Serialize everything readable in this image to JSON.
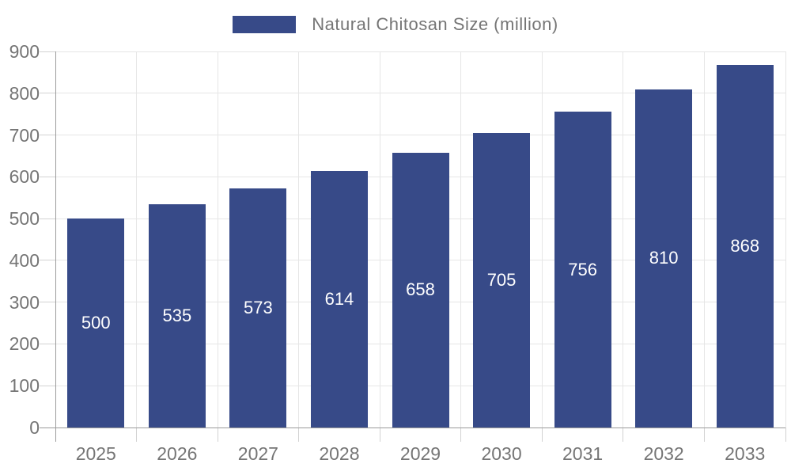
{
  "chart_data": {
    "type": "bar",
    "title": "",
    "series_name": "Natural Chitosan Size (million)",
    "categories": [
      "2025",
      "2026",
      "2027",
      "2028",
      "2029",
      "2030",
      "2031",
      "2032",
      "2033"
    ],
    "values": [
      500,
      535,
      573,
      614,
      658,
      705,
      756,
      810,
      868
    ],
    "xlabel": "",
    "ylabel": "",
    "ylim": [
      0,
      900
    ],
    "yticks": [
      0,
      100,
      200,
      300,
      400,
      500,
      600,
      700,
      800,
      900
    ],
    "grid": true,
    "legend_position": "top-center",
    "colors": {
      "bar": "#374A88",
      "value_label": "#ffffff",
      "axis_label": "#757575",
      "legend_text": "#757575",
      "gridline": "#e6e6e6",
      "tick": "#d2d2d2",
      "axis_line": "#9b9b9b",
      "background": "#ffffff"
    }
  }
}
